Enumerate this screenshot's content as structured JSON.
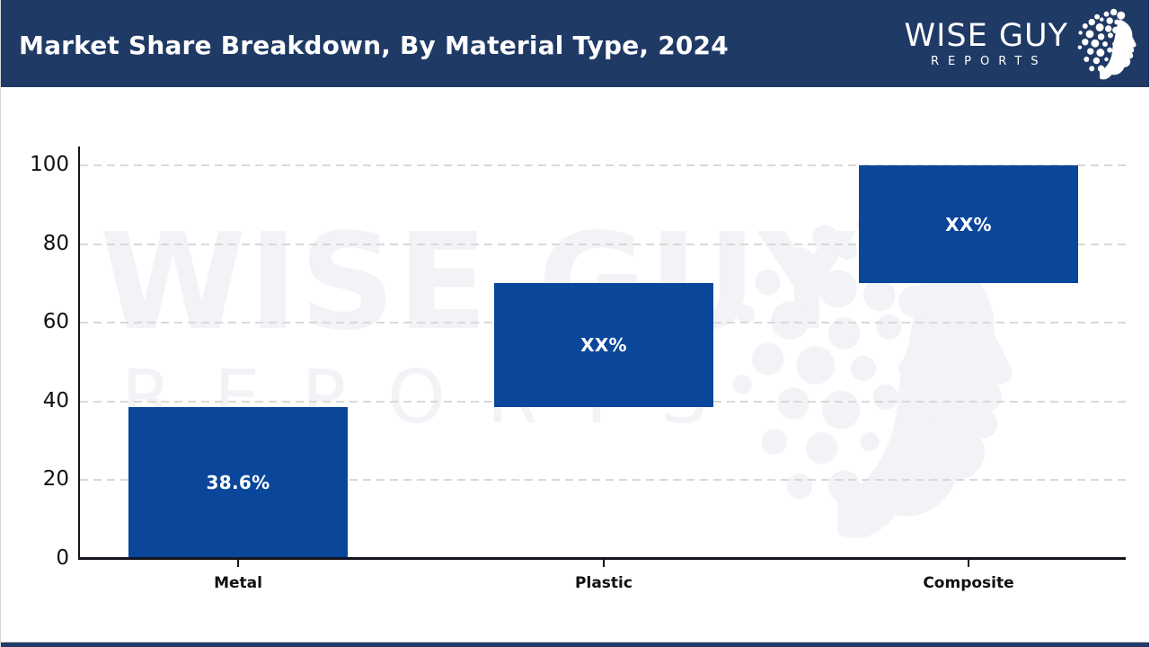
{
  "header": {
    "title": "Market Share Breakdown, By Material Type, 2024",
    "logo": {
      "line1": "WISE GUY",
      "line2": "REPORTS"
    }
  },
  "watermark": {
    "line1": "WISE GUY",
    "line2": "REPORTS"
  },
  "colors": {
    "header_bg": "#203a66",
    "bar": "#0a4699",
    "bar_label": "#ffffff",
    "grid": "#d9d9d9",
    "axis": "#15151f",
    "tick_label": "#111111",
    "watermark": "#f2f3f6",
    "page_bg": "#ffffff"
  },
  "chart_data": {
    "type": "bar",
    "subtype": "floating-waterfall",
    "title": "Market Share Breakdown, By Material Type, 2024",
    "categories": [
      "Metal",
      "Plastic",
      "Composite"
    ],
    "bar_ranges": [
      [
        0,
        38.6
      ],
      [
        38.6,
        70
      ],
      [
        70,
        100
      ]
    ],
    "values": [
      38.6,
      31.4,
      30
    ],
    "bar_labels": [
      "38.6%",
      "XX%",
      "XX%"
    ],
    "yticks": [
      0,
      20,
      40,
      60,
      80,
      100
    ],
    "ylim": [
      0,
      105
    ],
    "xlabel": "",
    "ylabel": "",
    "grid": "horizontal-dashed",
    "legend": "none"
  }
}
